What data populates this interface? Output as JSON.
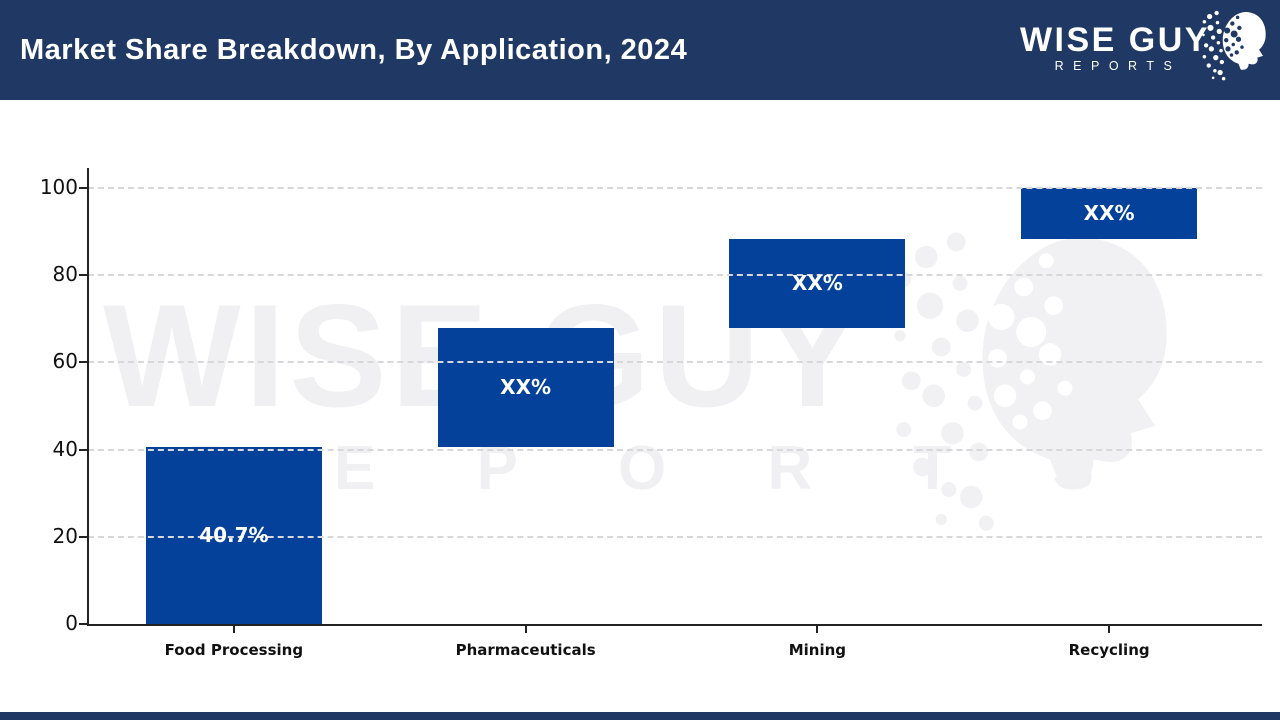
{
  "header": {
    "title": "Market Share Breakdown, By Application, 2024",
    "bg_color": "#1f3864",
    "logo": {
      "line1": "WISE GUY",
      "line2": "REPORTS"
    }
  },
  "chart_data": {
    "type": "bar",
    "variant": "waterfall",
    "title": "Market Share Breakdown, By Application, 2024",
    "categories": [
      "Food Processing",
      "Pharmaceuticals",
      "Mining",
      "Recycling"
    ],
    "segments": [
      {
        "category": "Food Processing",
        "start": 0,
        "end": 40.7,
        "label": "40.7%"
      },
      {
        "category": "Pharmaceuticals",
        "start": 40.7,
        "end": 67.9,
        "label": "XX%"
      },
      {
        "category": "Mining",
        "start": 67.9,
        "end": 88.4,
        "label": "XX%"
      },
      {
        "category": "Recycling",
        "start": 88.4,
        "end": 100,
        "label": "XX%"
      }
    ],
    "ylim": [
      0,
      100
    ],
    "yticks": [
      0,
      20,
      40,
      60,
      80,
      100
    ],
    "bar_color": "#04419a",
    "grid": "horizontal-dashed",
    "legend": false
  },
  "watermark": {
    "line1": "WISE GUY",
    "line2": "R E P O R T S"
  },
  "footer": {
    "bg_color": "#1f3864"
  }
}
